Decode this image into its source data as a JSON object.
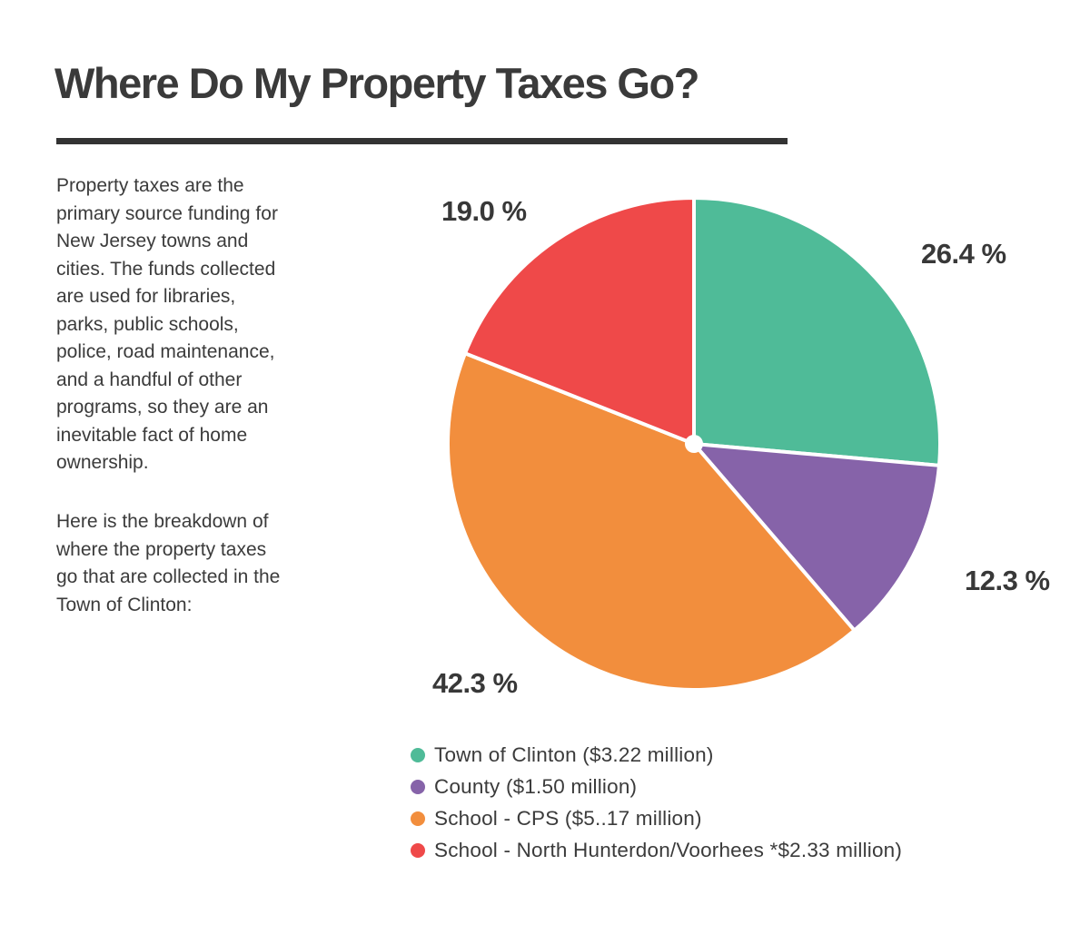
{
  "page": {
    "title": "Where Do My Property Taxes Go?",
    "intro_paragraph": "Property taxes are the\nprimary source funding for\nNew Jersey towns and\ncities. The funds collected\nare used for libraries,\nparks, public schools,\npolice, road maintenance,\nand a handful of other\nprograms, so they are an\ninevitable fact of home\nownership.",
    "breakdown_paragraph": "Here is the breakdown of\nwhere the property taxes\ngo that are collected in the\nTown of Clinton:"
  },
  "colors": {
    "text": "#3b3b3b",
    "title": "#3a3a3a",
    "rule": "#333333",
    "slice_divider": "#ffffff",
    "teal": "#4fbb98",
    "purple": "#8663a9",
    "orange": "#f28e3d",
    "red": "#ef4949"
  },
  "chart_data": {
    "type": "pie",
    "title": "Where Do My Property Taxes Go?",
    "units": "percent of collected property taxes",
    "direction": "clockwise",
    "start_angle": "12 o'clock",
    "legend_position": "bottom",
    "grid": false,
    "slices": [
      {
        "id": "town-of-clinton",
        "name": "Town of Clinton",
        "amount": "$3.22 million",
        "legend_label": "Town of Clinton ($3.22 million)",
        "pct": 26.4,
        "pct_label": "26.4 %",
        "color": "#4fbb98"
      },
      {
        "id": "county",
        "name": "County",
        "amount": "$1.50 million",
        "legend_label": "County ($1.50 million)",
        "pct": 12.3,
        "pct_label": "12.3 %",
        "color": "#8663a9"
      },
      {
        "id": "school-cps",
        "name": "School - CPS",
        "amount": "$5..17 million",
        "legend_label": "School - CPS ($5..17 million)",
        "pct": 42.3,
        "pct_label": "42.3 %",
        "color": "#f28e3d"
      },
      {
        "id": "school-north-hunterdon-voorhees",
        "name": "School - North Hunterdon/Voorhees",
        "amount": "*$2.33 million)",
        "legend_label": "School - North Hunterdon/Voorhees *$2.33 million)",
        "pct": 19.0,
        "pct_label": "19.0 %",
        "color": "#ef4949"
      }
    ]
  }
}
